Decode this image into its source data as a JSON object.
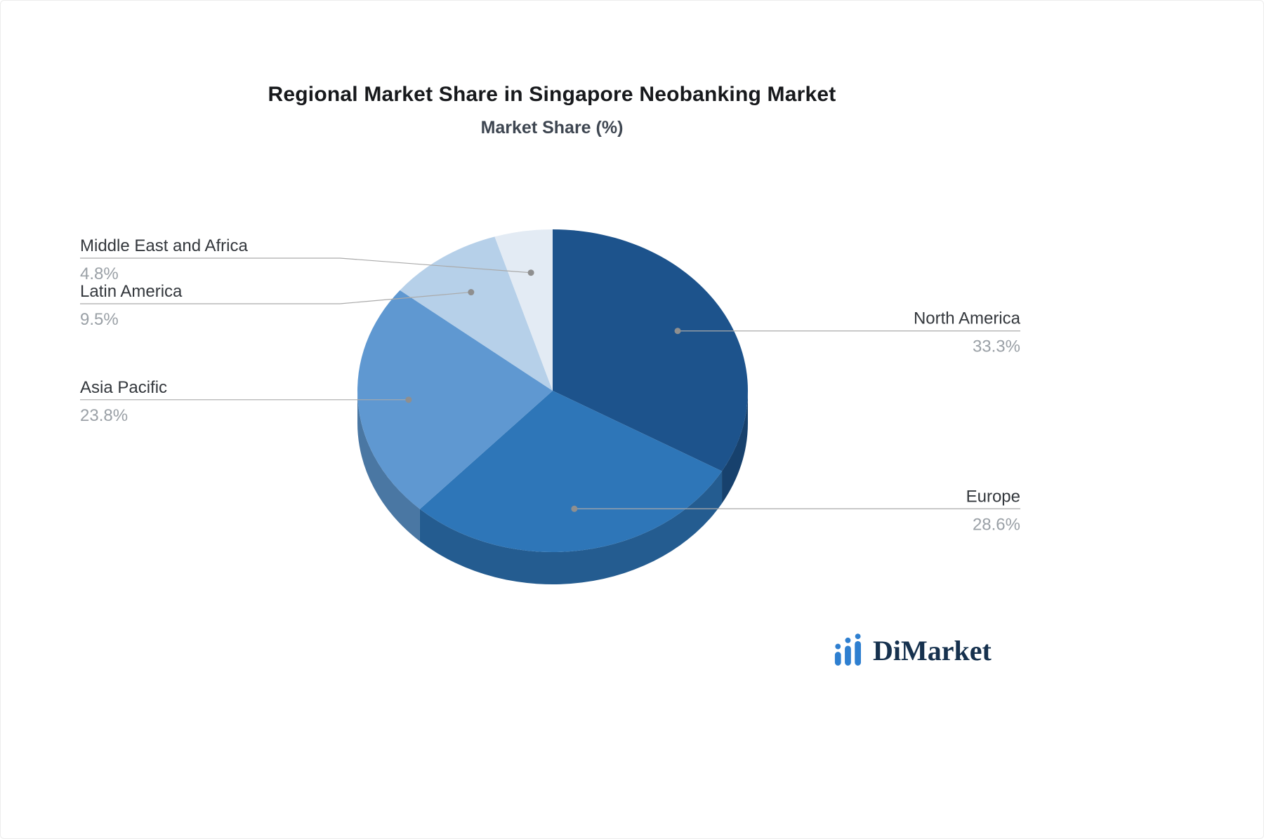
{
  "header": {
    "title": "Regional Market Share in Singapore Neobanking Market",
    "subtitle": "Market Share (%)"
  },
  "chart_data": {
    "type": "pie",
    "title": "Regional Market Share in Singapore Neobanking Market",
    "subtitle": "Market Share (%)",
    "unit": "%",
    "start_angle_deg": -90,
    "direction": "clockwise",
    "style": "3d-pie",
    "legend_position": "none",
    "labels_show": "name and percent with leader lines",
    "slices": [
      {
        "name": "North America",
        "value": 33.3,
        "label": "33.3%",
        "color": "#1d538c",
        "side": "right"
      },
      {
        "name": "Europe",
        "value": 28.6,
        "label": "28.6%",
        "color": "#2e76b8",
        "side": "right"
      },
      {
        "name": "Asia Pacific",
        "value": 23.8,
        "label": "23.8%",
        "color": "#5f98d1",
        "side": "left"
      },
      {
        "name": "Latin America",
        "value": 9.5,
        "label": "9.5%",
        "color": "#b6d0e9",
        "side": "left"
      },
      {
        "name": "Middle East and Africa",
        "value": 4.8,
        "label": "4.8%",
        "color": "#e3ebf4",
        "side": "left"
      }
    ],
    "colors": {
      "label_name": "#33373c",
      "label_percent": "#9aa0a6",
      "leader_line": "#aaaaaa",
      "leader_dot": "#8f8f8f"
    }
  },
  "branding": {
    "logo_text": "DiMarket",
    "logo_color": "#16314e",
    "logo_icon_color": "#2e7fd0"
  }
}
